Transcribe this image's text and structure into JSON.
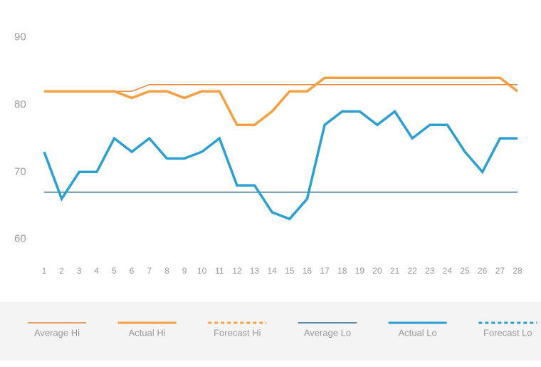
{
  "chart_data": {
    "type": "line",
    "categories": [
      1,
      2,
      3,
      4,
      5,
      6,
      7,
      8,
      9,
      10,
      11,
      12,
      13,
      14,
      15,
      16,
      17,
      18,
      19,
      20,
      21,
      22,
      23,
      24,
      25,
      26,
      27,
      28
    ],
    "ylim": [
      56,
      93
    ],
    "yticks": [
      60,
      70,
      80,
      90
    ],
    "grid": false,
    "legend": "bottom",
    "series": [
      {
        "name": "Average Hi",
        "color": "#e8883a",
        "line_width": 1.5,
        "dashed": false,
        "values": [
          82,
          82,
          82,
          82,
          82,
          82,
          83,
          83,
          83,
          83,
          83,
          83,
          83,
          83,
          83,
          83,
          83,
          83,
          83,
          83,
          83,
          83,
          83,
          83,
          83,
          83,
          83,
          83
        ]
      },
      {
        "name": "Actual Hi",
        "color": "#f5a043",
        "line_width": 3.5,
        "dashed": false,
        "values": [
          82,
          82,
          82,
          82,
          82,
          81,
          82,
          82,
          81,
          82,
          82,
          77,
          77,
          79,
          82,
          82,
          84,
          84,
          84,
          84,
          84,
          84,
          84,
          84,
          84,
          84,
          84,
          82
        ]
      },
      {
        "name": "Forecast Hi",
        "color": "#f5a043",
        "line_width": 3.5,
        "dashed": true,
        "values": [
          null,
          null,
          null,
          null,
          null,
          null,
          null,
          null,
          null,
          null,
          null,
          null,
          null,
          null,
          null,
          null,
          null,
          null,
          null,
          null,
          null,
          null,
          null,
          null,
          null,
          null,
          null,
          null
        ]
      },
      {
        "name": "Average Lo",
        "color": "#2a6f8f",
        "line_width": 1.5,
        "dashed": false,
        "values": [
          67,
          67,
          67,
          67,
          67,
          67,
          67,
          67,
          67,
          67,
          67,
          67,
          67,
          67,
          67,
          67,
          67,
          67,
          67,
          67,
          67,
          67,
          67,
          67,
          67,
          67,
          67,
          67
        ]
      },
      {
        "name": "Actual Lo",
        "color": "#2e9fd2",
        "line_width": 3.5,
        "dashed": false,
        "values": [
          73,
          66,
          70,
          70,
          75,
          73,
          75,
          72,
          72,
          73,
          75,
          68,
          68,
          64,
          63,
          66,
          77,
          79,
          79,
          77,
          79,
          75,
          77,
          77,
          73,
          70,
          75,
          75
        ]
      },
      {
        "name": "Forecast Lo",
        "color": "#2e9fd2",
        "line_width": 3.5,
        "dashed": true,
        "values": [
          null,
          null,
          null,
          null,
          null,
          null,
          null,
          null,
          null,
          null,
          null,
          null,
          null,
          null,
          null,
          null,
          null,
          null,
          null,
          null,
          null,
          null,
          null,
          null,
          null,
          null,
          null,
          null
        ]
      }
    ]
  }
}
